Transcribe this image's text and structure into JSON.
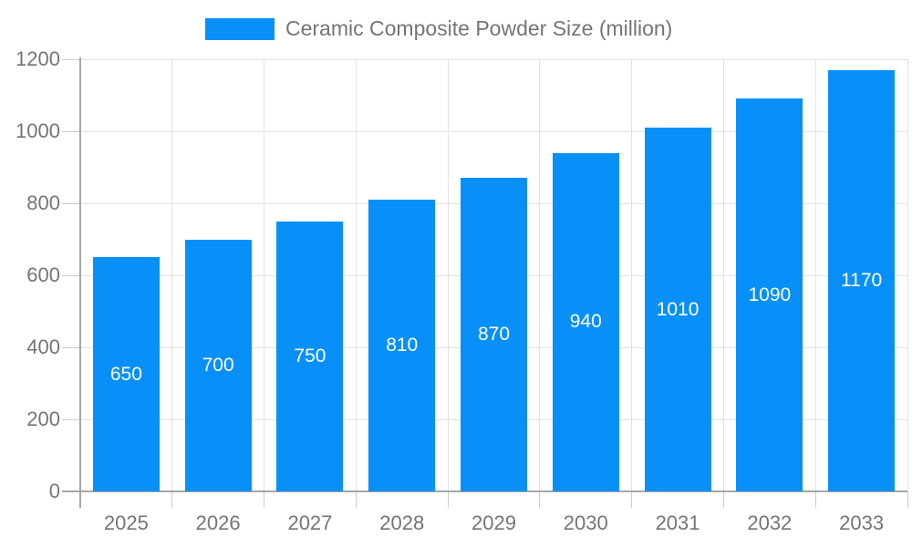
{
  "legend": {
    "label": "Ceramic Composite Powder Size (million)"
  },
  "colors": {
    "bar": "#0890f8",
    "grid": "#e2e2e2",
    "tick": "#cccccc",
    "axis": "#a6a6a6",
    "text": "#757575",
    "bar_label": "#ffffff",
    "background": "#ffffff"
  },
  "chart_data": {
    "type": "bar",
    "title": "Ceramic Composite Powder Size (million)",
    "categories": [
      "2025",
      "2026",
      "2027",
      "2028",
      "2029",
      "2030",
      "2031",
      "2032",
      "2033"
    ],
    "series": [
      {
        "name": "Ceramic Composite Powder Size (million)",
        "values": [
          650,
          700,
          750,
          810,
          870,
          940,
          1010,
          1090,
          1170
        ]
      }
    ],
    "xlabel": "",
    "ylabel": "",
    "ylim": [
      0,
      1200
    ],
    "y_ticks": [
      0,
      200,
      400,
      600,
      800,
      1000,
      1200
    ],
    "grid": true,
    "legend_position": "top",
    "bar_value_labels": true
  }
}
